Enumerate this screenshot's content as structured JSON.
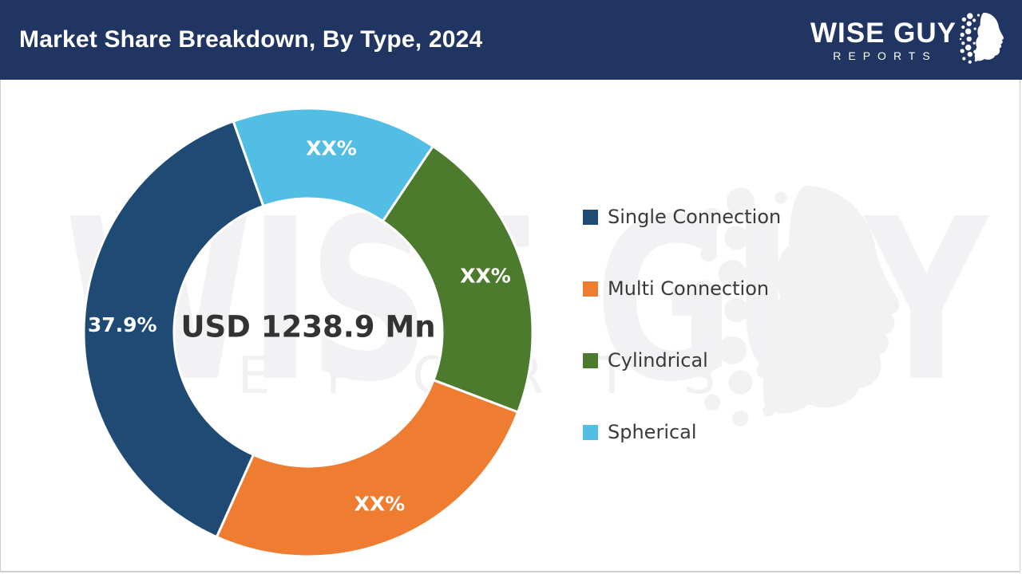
{
  "header": {
    "title": "Market Share Breakdown, By Type, 2024",
    "background_color": "#203561",
    "logo": {
      "line1": "WISE GUY",
      "line2": "REPORTS"
    }
  },
  "watermark": {
    "line1": "WISE GUY",
    "line2": "REPORTS"
  },
  "chart_data": {
    "type": "pie",
    "subtype": "donut",
    "title": "Market Share Breakdown, By Type, 2024",
    "center_label": "USD 1238.9 Mn",
    "categories": [
      "Single Connection",
      "Multi Connection",
      "Cylindrical",
      "Spherical"
    ],
    "values": [
      37.9,
      25.9,
      21.4,
      14.8
    ],
    "slice_labels": [
      "37.9%",
      "XX%",
      "XX%",
      "XX%"
    ],
    "colors": [
      "#1F4A73",
      "#EE7D31",
      "#4C7B2D",
      "#52BEE4"
    ],
    "start_angle_cw_from_north": 340.5,
    "direction_in_data_order": "counterclockwise",
    "legend_position": "right"
  },
  "legend": {
    "items": [
      {
        "label": "Single Connection",
        "color": "#1F4A73"
      },
      {
        "label": "Multi Connection",
        "color": "#EE7D31"
      },
      {
        "label": "Cylindrical",
        "color": "#4C7B2D"
      },
      {
        "label": "Spherical",
        "color": "#52BEE4"
      }
    ]
  }
}
